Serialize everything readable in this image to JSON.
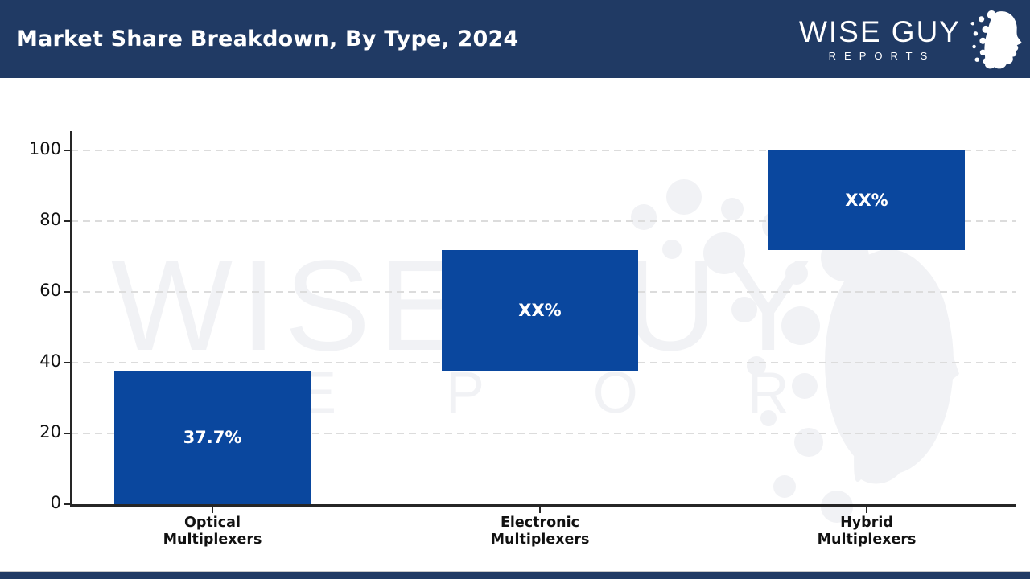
{
  "header": {
    "title": "Market Share Breakdown, By Type, 2024",
    "logo": {
      "line1": "WISE GUY",
      "line2": "REPORTS"
    }
  },
  "watermark": {
    "line1": "WISE GUY",
    "line2": "R E P O R T S"
  },
  "chart_data": {
    "type": "bar",
    "variant": "floating-waterfall",
    "title": "Market Share Breakdown, By Type, 2024",
    "categories": [
      [
        "Optical",
        "Multiplexers"
      ],
      [
        "Electronic",
        "Multiplexers"
      ],
      [
        "Hybrid",
        "Multiplexers"
      ]
    ],
    "segments": [
      {
        "category": "Optical Multiplexers",
        "start": 0,
        "end": 37.7,
        "label": "37.7%"
      },
      {
        "category": "Electronic Multiplexers",
        "start": 37.7,
        "end": 71.8,
        "label": "XX%"
      },
      {
        "category": "Hybrid Multiplexers",
        "start": 71.8,
        "end": 100,
        "label": "XX%"
      }
    ],
    "yticks": [
      0,
      20,
      40,
      60,
      80,
      100
    ],
    "ylim": [
      0,
      105
    ],
    "xlabel": "",
    "ylabel": "",
    "grid": "horizontal-dashed",
    "legend": "none",
    "colors": {
      "bar": "#0a479e",
      "bar_label": "#ffffff",
      "axis": "#262626",
      "gridline": "#dcdcdc",
      "header_bg": "#203a64",
      "watermark": "#f1f2f5"
    }
  }
}
